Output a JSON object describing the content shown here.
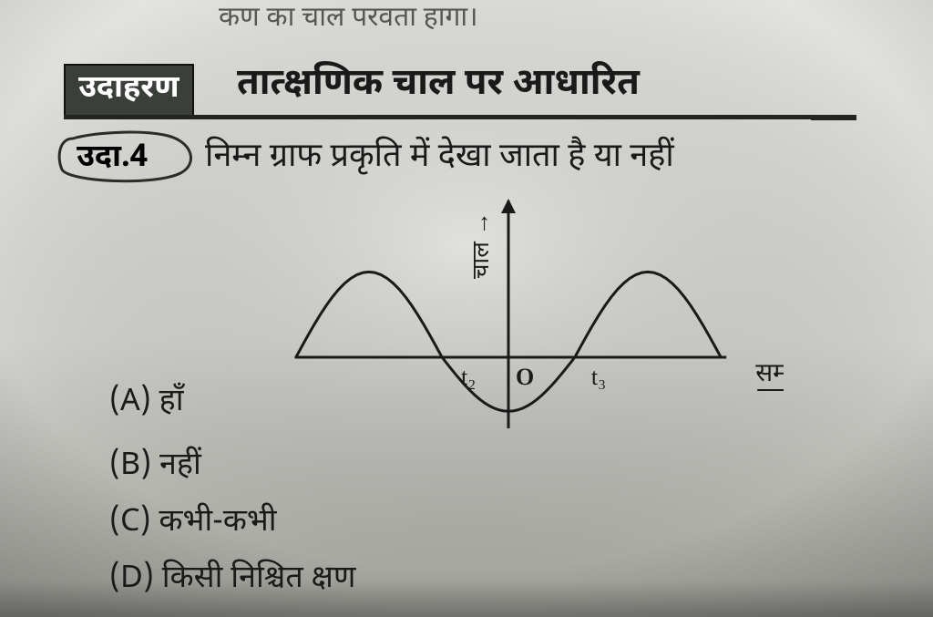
{
  "page": {
    "background_gradient": {
      "top": "#e3e4df",
      "mid": "#d1d2cd",
      "bottom": "#9d9e97"
    },
    "text_color": "#1a1a1a"
  },
  "top_cut_text": "कण का चाल परवता हागा।",
  "section": {
    "badge_text": "उदाहरण",
    "badge_bg": "#3a3f3a",
    "badge_text_color": "#ffffff",
    "title": "तात्क्षणिक चाल पर आधारित",
    "underline_color": "#242424"
  },
  "question": {
    "badge": "उदा.4",
    "badge_circle_color": "#2b2b2b",
    "text": "निम्न ग्राफ प्रकृति में देखा जाता है या नहीं"
  },
  "graph": {
    "type": "line",
    "axis_color": "#1a1a1a",
    "curve_color": "#1a1a1a",
    "line_width": 3,
    "x_axis_label": "समय",
    "y_axis_label": "चाल →",
    "origin_label": "O",
    "tick_labels": {
      "left": "t₂",
      "right": "t₃"
    },
    "x_range": [
      -3.2,
      3.2
    ],
    "curve_points": [
      [
        -3.2,
        0.0
      ],
      [
        -3.0,
        0.588
      ],
      [
        -2.8,
        0.951
      ],
      [
        -2.6,
        0.951
      ],
      [
        -2.4,
        0.588
      ],
      [
        -2.2,
        0.0
      ],
      [
        -2.0,
        0.0
      ],
      [
        -1.8,
        0.0
      ],
      [
        -1.6,
        0.0
      ],
      [
        -1.4,
        0.0
      ],
      [
        -1.2,
        0.0
      ],
      [
        -1.0,
        0.0
      ],
      [
        -0.8,
        -0.368
      ],
      [
        -0.6,
        -0.588
      ],
      [
        -0.4,
        -0.588
      ],
      [
        -0.2,
        -0.368
      ],
      [
        0.0,
        0.0
      ],
      [
        0.2,
        -0.368
      ],
      [
        0.4,
        -0.588
      ],
      [
        0.6,
        -0.588
      ],
      [
        0.8,
        -0.368
      ],
      [
        1.0,
        0.0
      ],
      [
        1.2,
        0.0
      ],
      [
        1.4,
        0.0
      ],
      [
        1.6,
        0.0
      ],
      [
        1.8,
        0.0
      ],
      [
        2.0,
        0.0
      ],
      [
        2.2,
        0.0
      ],
      [
        2.4,
        0.588
      ],
      [
        2.6,
        0.951
      ],
      [
        2.8,
        0.951
      ],
      [
        3.0,
        0.588
      ],
      [
        3.2,
        0.0
      ]
    ],
    "y_range": [
      -1.1,
      1.8
    ],
    "font_size": 26
  },
  "options": {
    "A": "हाँ",
    "B": "नहीं",
    "C": "कभी-कभी",
    "D": "किसी निश्चित क्षण"
  }
}
